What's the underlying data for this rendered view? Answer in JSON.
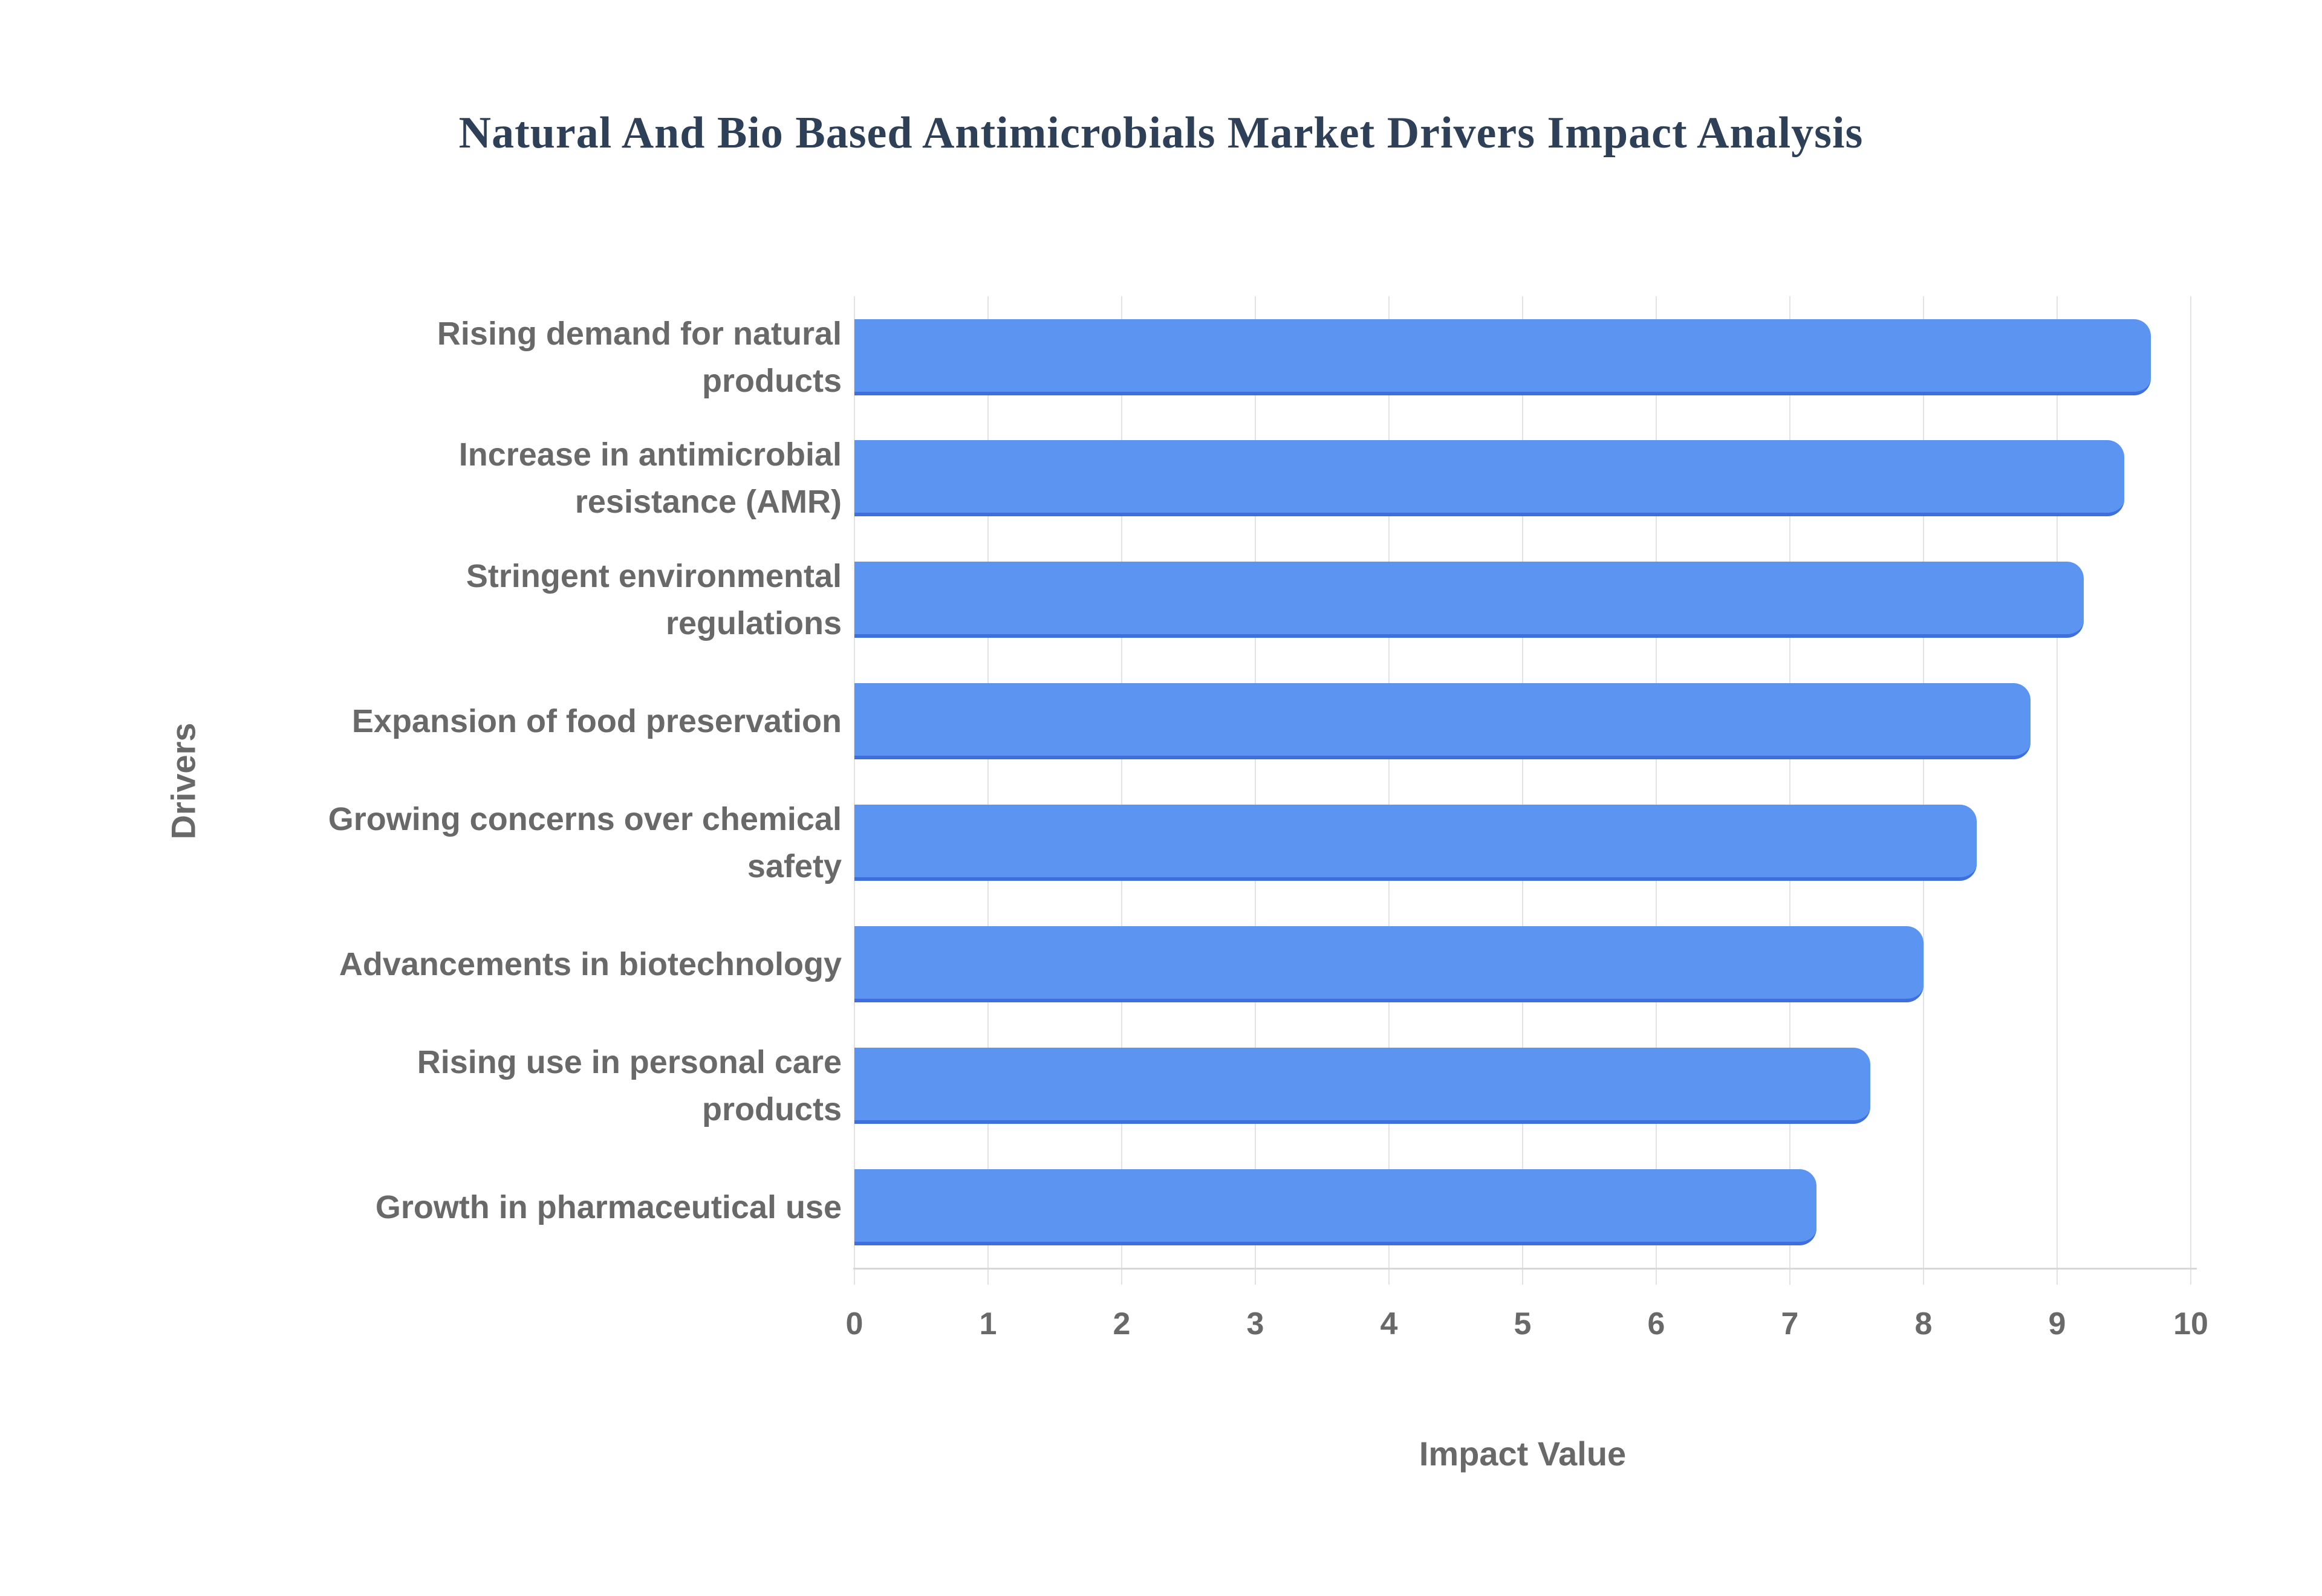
{
  "title": "Natural And Bio Based Antimicrobials Market Drivers Impact Analysis",
  "chart_data": {
    "type": "bar",
    "orientation": "horizontal",
    "title": "Natural And Bio Based Antimicrobials Market Drivers Impact Analysis",
    "xlabel": "Impact Value",
    "ylabel": "Drivers",
    "xlim": [
      0,
      10
    ],
    "x_ticks": [
      "0",
      "1",
      "2",
      "3",
      "4",
      "5",
      "6",
      "7",
      "8",
      "9",
      "10"
    ],
    "grid": true,
    "legend": "none",
    "categories": [
      "Rising demand for natural products",
      "Increase in antimicrobial resistance (AMR)",
      "Stringent environmental regulations",
      "Expansion of food preservation",
      "Growing concerns over chemical safety",
      "Advancements in biotechnology",
      "Rising use in personal care products",
      "Growth in pharmaceutical use"
    ],
    "category_lines": [
      [
        "Rising demand for natural",
        "products"
      ],
      [
        "Increase in antimicrobial",
        "resistance (AMR)"
      ],
      [
        "Stringent environmental",
        "regulations"
      ],
      [
        "Expansion of food preservation"
      ],
      [
        "Growing concerns over chemical",
        "safety"
      ],
      [
        "Advancements in biotechnology"
      ],
      [
        "Rising use in personal care",
        "products"
      ],
      [
        "Growth in pharmaceutical use"
      ]
    ],
    "values": [
      9.7,
      9.5,
      9.2,
      8.8,
      8.4,
      8.0,
      7.6,
      7.2
    ],
    "colors": {
      "background": "#ffffff",
      "bar_fill": "#5b94f1",
      "bar_edge": "#3e6fdc",
      "title": "#2e4057",
      "label": "#696969",
      "gridline": "#e3e3e3",
      "axis_line": "#d8d8d8"
    }
  }
}
